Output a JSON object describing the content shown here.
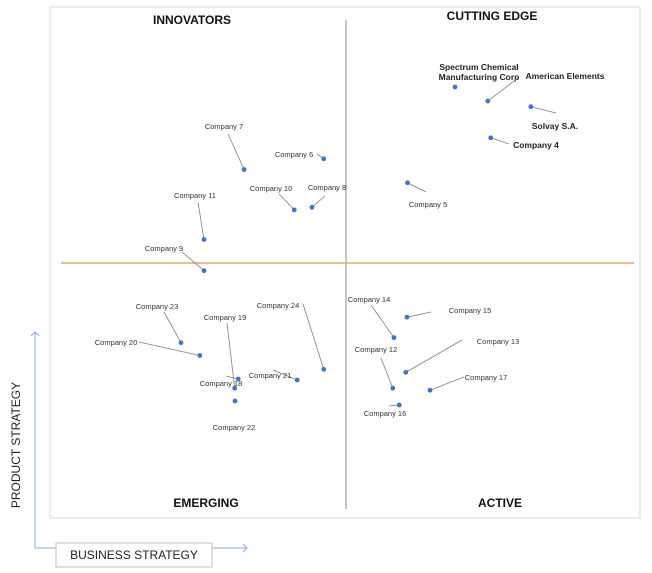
{
  "quadrants": {
    "top_left": "INNOVATORS",
    "top_right": "CUTTING EDGE",
    "bottom_left": "EMERGING",
    "bottom_right": "ACTIVE"
  },
  "axes": {
    "y_title": "PRODUCT STRATEGY",
    "x_title": "BUSINESS STRATEGY"
  },
  "colors": {
    "point": "#4472c4",
    "horizontal_divider": "#e2a66f",
    "vertical_divider": "#8c8c8c",
    "frame": "#d9d9d9",
    "axis_arrow": "#8eaadb"
  },
  "chart_data": {
    "type": "scatter",
    "title": "",
    "xlabel": "BUSINESS STRATEGY",
    "ylabel": "PRODUCT STRATEGY",
    "xlim": [
      0,
      100
    ],
    "ylim": [
      0,
      100
    ],
    "grid": false,
    "points": [
      {
        "label": "Spectrum Chemical Manufacturing Corp",
        "lines": [
          "Spectrum Chemical",
          "Manufacturing Corp"
        ],
        "x": 68.6,
        "y": 84.3,
        "bold": true
      },
      {
        "label": "American Elements",
        "lines": [
          "American Elements"
        ],
        "x": 74.2,
        "y": 81.6,
        "bold": true
      },
      {
        "label": "Solvay S.A.",
        "lines": [
          "Solvay S.A."
        ],
        "x": 81.5,
        "y": 80.5,
        "bold": true
      },
      {
        "label": "Company 4",
        "lines": [
          "Company 4"
        ],
        "x": 74.7,
        "y": 74.4,
        "bold": true
      },
      {
        "label": "Company 5",
        "lines": [
          "Company 5"
        ],
        "x": 60.6,
        "y": 65.6
      },
      {
        "label": "Company 6",
        "lines": [
          "Company 6"
        ],
        "x": 46.4,
        "y": 70.3
      },
      {
        "label": "Company 7",
        "lines": [
          "Company 7"
        ],
        "x": 32.9,
        "y": 68.2
      },
      {
        "label": "Company 8",
        "lines": [
          "Company 8"
        ],
        "x": 44.4,
        "y": 60.8
      },
      {
        "label": "Company 9",
        "lines": [
          "Company 9"
        ],
        "x": 26.1,
        "y": 48.4
      },
      {
        "label": "Company 10",
        "lines": [
          "Company 10"
        ],
        "x": 41.4,
        "y": 60.3
      },
      {
        "label": "Company 11",
        "lines": [
          "Company 11"
        ],
        "x": 26.1,
        "y": 54.5
      },
      {
        "label": "Company 12",
        "lines": [
          "Company 12"
        ],
        "x": 58.1,
        "y": 25.4
      },
      {
        "label": "Company 13",
        "lines": [
          "Company 13"
        ],
        "x": 60.3,
        "y": 28.5
      },
      {
        "label": "Company 14",
        "lines": [
          "Company 14"
        ],
        "x": 58.3,
        "y": 35.3
      },
      {
        "label": "Company 15",
        "lines": [
          "Company 15"
        ],
        "x": 60.5,
        "y": 39.3
      },
      {
        "label": "Company 16",
        "lines": [
          "Company 16"
        ],
        "x": 59.2,
        "y": 22.1
      },
      {
        "label": "Company 17",
        "lines": [
          "Company 17"
        ],
        "x": 64.4,
        "y": 25.0
      },
      {
        "label": "Company 18",
        "lines": [
          "Company 18"
        ],
        "x": 31.9,
        "y": 27.2
      },
      {
        "label": "Company 19",
        "lines": [
          "Company 19"
        ],
        "x": 31.3,
        "y": 25.4
      },
      {
        "label": "Company 20",
        "lines": [
          "Company 20"
        ],
        "x": 25.4,
        "y": 31.8
      },
      {
        "label": "Company 21",
        "lines": [
          "Company 21"
        ],
        "x": 41.9,
        "y": 27.0
      },
      {
        "label": "Company 22",
        "lines": [
          "Company 22"
        ],
        "x": 31.3,
        "y": 17.9
      },
      {
        "label": "Company 23",
        "lines": [
          "Company 23"
        ],
        "x": 22.2,
        "y": 34.3
      },
      {
        "label": "Company 24",
        "lines": [
          "Company 24"
        ],
        "x": 46.4,
        "y": 29.1
      }
    ]
  }
}
